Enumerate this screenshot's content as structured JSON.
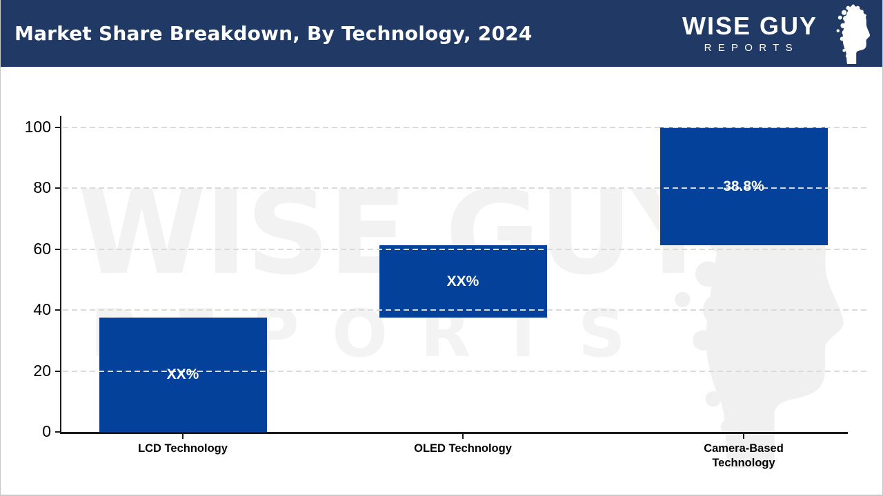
{
  "header": {
    "title": "Market Share Breakdown, By Technology, 2024",
    "logo": {
      "line1": "WISE GUY",
      "line2": "REPORTS"
    }
  },
  "watermark": {
    "line1": "WISE GUY",
    "line2": "REPORTS"
  },
  "colors": {
    "header_bg": "#213965",
    "bar": "#04419b",
    "gridline": "#dadada",
    "axis": "#1a1a1a",
    "bar_label": "#ffffff",
    "watermark": "#f2f2f2"
  },
  "chart_data": {
    "type": "bar",
    "subtype": "waterfall",
    "title": "Market Share Breakdown, By Technology, 2024",
    "xlabel": "",
    "ylabel": "",
    "ylim": [
      0,
      100
    ],
    "yticks": [
      0,
      20,
      40,
      60,
      80,
      100
    ],
    "grid": "horizontal-dashed, drawn over bars",
    "legend": "none",
    "categories": [
      "LCD Technology",
      "OLED Technology",
      "Camera-Based Technology"
    ],
    "bars": [
      {
        "category": "LCD Technology",
        "start": 0,
        "end": 37.5,
        "label": "XX%"
      },
      {
        "category": "OLED Technology",
        "start": 37.5,
        "end": 61.2,
        "label": "XX%"
      },
      {
        "category": "Camera-Based Technology",
        "start": 61.2,
        "end": 100,
        "label": "38.8%"
      }
    ]
  }
}
